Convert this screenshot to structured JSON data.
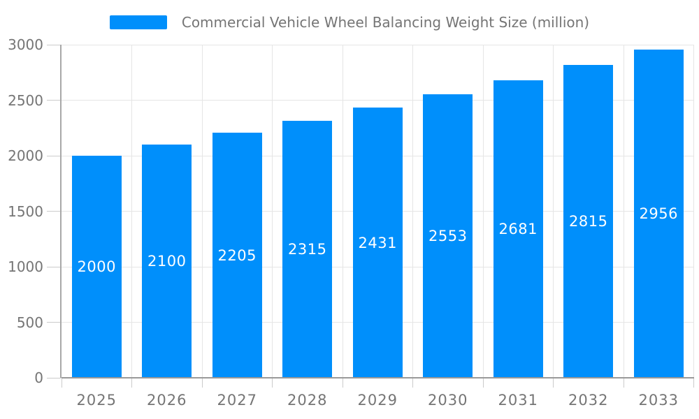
{
  "chart_data": {
    "type": "bar",
    "title": "",
    "categories": [
      "2025",
      "2026",
      "2027",
      "2028",
      "2029",
      "2030",
      "2031",
      "2032",
      "2033"
    ],
    "series": [
      {
        "name": "Commercial Vehicle Wheel Balancing Weight Size (million)",
        "values": [
          2000,
          2100,
          2205,
          2315,
          2431,
          2553,
          2681,
          2815,
          2956
        ]
      }
    ],
    "xlabel": "",
    "ylabel": "",
    "ylim": [
      0,
      3000
    ],
    "yticks": [
      0,
      500,
      1000,
      1500,
      2000,
      2500,
      3000
    ],
    "legend_position": "top-center",
    "grid": true,
    "value_labels": "inside-center",
    "colors": {
      "bar": "#008FFB",
      "axis_label": "#757575",
      "legend_label": "#757575",
      "bar_value_label": "#FFFFFF",
      "gridline": "#E5E5E5",
      "tick": "#CBCBCB",
      "x_axis_line": "#999999",
      "y_axis_line": "#A8A8A8"
    }
  }
}
